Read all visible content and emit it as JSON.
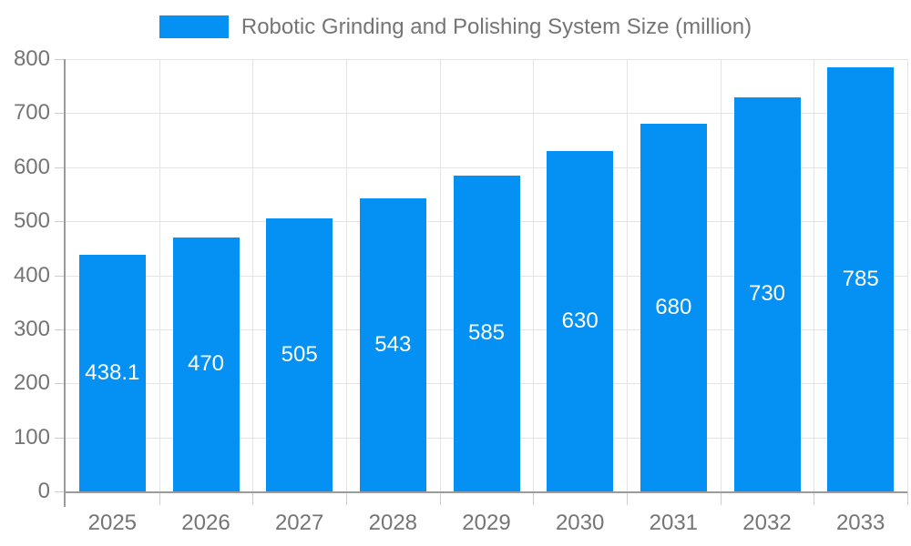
{
  "legend": {
    "label": "Robotic Grinding and Polishing System Size (million)"
  },
  "chart_data": {
    "type": "bar",
    "title": "Robotic Grinding and Polishing System Size (million)",
    "categories": [
      "2025",
      "2026",
      "2027",
      "2028",
      "2029",
      "2030",
      "2031",
      "2032",
      "2033"
    ],
    "values": [
      438.1,
      470,
      505,
      543,
      585,
      630,
      680,
      730,
      785
    ],
    "xlabel": "",
    "ylabel": "",
    "ylim": [
      0,
      800
    ],
    "yticks": [
      0,
      100,
      200,
      300,
      400,
      500,
      600,
      700,
      800
    ],
    "grid": true,
    "legend_position": "top-center",
    "value_labels_inside_bars": true,
    "colors": {
      "bar": "#0591f3",
      "value_label": "#ffffff",
      "axis_text": "#757575",
      "grid": "#e4e4e4",
      "tick": "#cccccc",
      "axis_line": "#9b9b9b",
      "background": "#ffffff"
    }
  }
}
